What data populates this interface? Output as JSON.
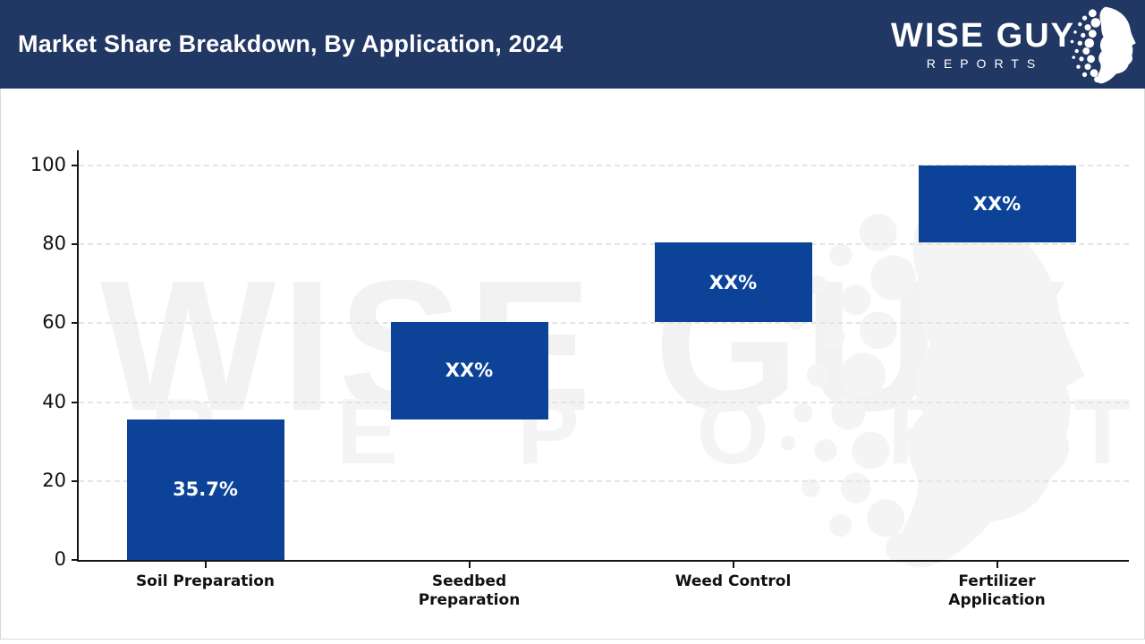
{
  "header": {
    "title": "Market Share Breakdown, By Application, 2024",
    "logo": {
      "name": "WISE GUY",
      "sub": "REPORTS",
      "icon": "head-profile-dots-icon"
    }
  },
  "watermark": {
    "line1": "WISE GUY",
    "line2": "R E P O R T S",
    "icon": "head-profile-dots-icon"
  },
  "chart_data": {
    "type": "bar",
    "subtype": "waterfall",
    "title": "Market Share Breakdown, By Application, 2024",
    "xlabel": "",
    "ylabel": "",
    "ylim": [
      0,
      100
    ],
    "yticks": [
      "0",
      "20",
      "40",
      "60",
      "80",
      "100"
    ],
    "grid": "horizontal-dashed",
    "legend": "none",
    "categories": [
      "Soil Preparation",
      "Seedbed\nPreparation",
      "Weed Control",
      "Fertilizer\nApplication"
    ],
    "bars": [
      {
        "category": "Soil Preparation",
        "base": 0,
        "top": 35.7,
        "label": "35.7%"
      },
      {
        "category": "Seedbed\nPreparation",
        "base": 35.7,
        "top": 60.3,
        "label": "XX%"
      },
      {
        "category": "Weed Control",
        "base": 60.3,
        "top": 80.5,
        "label": "XX%"
      },
      {
        "category": "Fertilizer\nApplication",
        "base": 80.5,
        "top": 100,
        "label": "XX%"
      }
    ]
  },
  "colors": {
    "header_bg": "#213764",
    "bar": "#0c4298",
    "bar_label": "#ffffff",
    "gridline": "#e4e4e4",
    "axis": "#141414",
    "watermark": "#f2f2f2",
    "frame_border": "#d9d9d9"
  }
}
